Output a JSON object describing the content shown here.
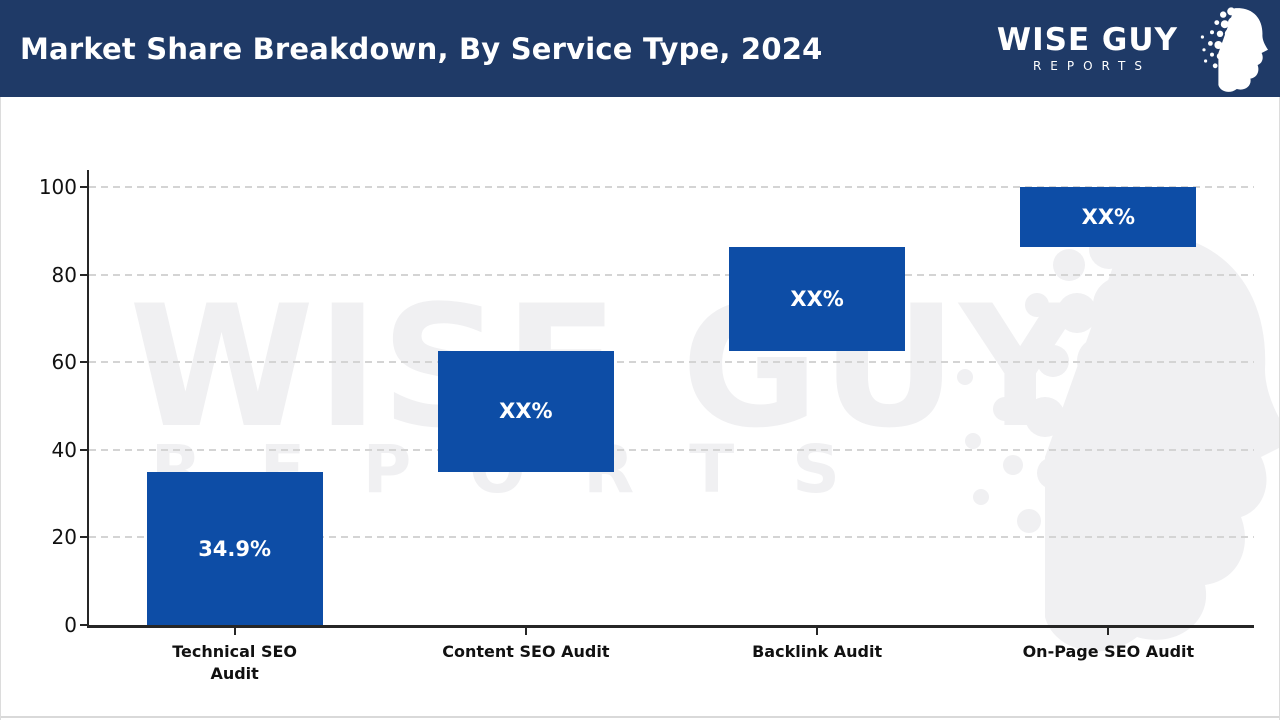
{
  "header": {
    "title": "Market Share Breakdown, By Service Type, 2024",
    "logo": {
      "line1": "WISE GUY",
      "line2": "REPORTS",
      "face_icon": "dotted-head-profile"
    }
  },
  "watermark": {
    "line1": "WISE GUY",
    "line2": "REPORTS",
    "face_icon": "dotted-head-profile"
  },
  "colors": {
    "header_bg": "#1f3a67",
    "bar": "#0d4da6",
    "bar_label": "#ffffff",
    "gridline": "#d4d4d4",
    "axis": "#262626",
    "watermark": "#f0f0f2"
  },
  "chart_data": {
    "type": "bar",
    "subtype": "waterfall",
    "title": "Market Share Breakdown, By Service Type, 2024",
    "xlabel": "",
    "ylabel": "",
    "ylim": [
      0,
      100
    ],
    "yticks": [
      0,
      20,
      40,
      60,
      80,
      100
    ],
    "grid": "horizontal-dashed",
    "legend": "none",
    "categories": [
      "Technical SEO Audit",
      "Content SEO Audit",
      "Backlink Audit",
      "On-Page SEO Audit"
    ],
    "categories_display": [
      "Technical SEO\nAudit",
      "Content SEO Audit",
      "Backlink Audit",
      "On-Page SEO Audit"
    ],
    "segments": [
      {
        "category": "Technical SEO Audit",
        "start": 0,
        "end": 34.9,
        "value": 34.9,
        "label": "34.9%"
      },
      {
        "category": "Content SEO Audit",
        "start": 34.9,
        "end": 62.6,
        "value": 27.7,
        "label": "XX%"
      },
      {
        "category": "Backlink Audit",
        "start": 62.6,
        "end": 86.3,
        "value": 23.7,
        "label": "XX%"
      },
      {
        "category": "On-Page SEO Audit",
        "start": 86.3,
        "end": 100,
        "value": 13.7,
        "label": "XX%"
      }
    ]
  }
}
